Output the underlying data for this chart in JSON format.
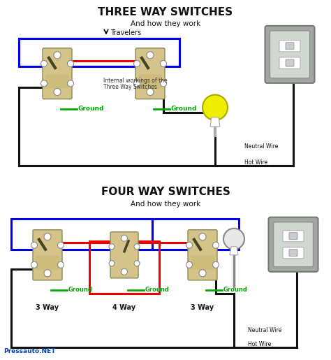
{
  "bg_outer": "#ffffff",
  "bg_panel1": "#b8b8b8",
  "bg_panel2": "#b0b0b0",
  "white": "#ffffff",
  "black": "#111111",
  "blue": "#0000ee",
  "red": "#ee0000",
  "green": "#00aa00",
  "yellow_bulb": "#eeee00",
  "beige_switch": "#d4c48a",
  "panel_gray": "#a8a8a8",
  "panel_inner": "#d8d8d8",
  "title1": "THREE WAY SWITCHES",
  "subtitle1": "And how they work",
  "title2": "FOUR WAY SWITCHES",
  "subtitle2": "And how they work",
  "label_travelers": "Travelers",
  "label_internal1": "Internal workings of the",
  "label_internal2": "Three Way Switches",
  "label_ground": "Ground",
  "label_neutral": "Neutral Wire",
  "label_hot": "Hot Wire",
  "label_3way_left": "3 Way",
  "label_4way": "4 Way",
  "label_3way_right": "3 Way",
  "label_pressauto": "Pressauto.NET",
  "wire_lw": 2.2,
  "wire_lw_thin": 1.8
}
